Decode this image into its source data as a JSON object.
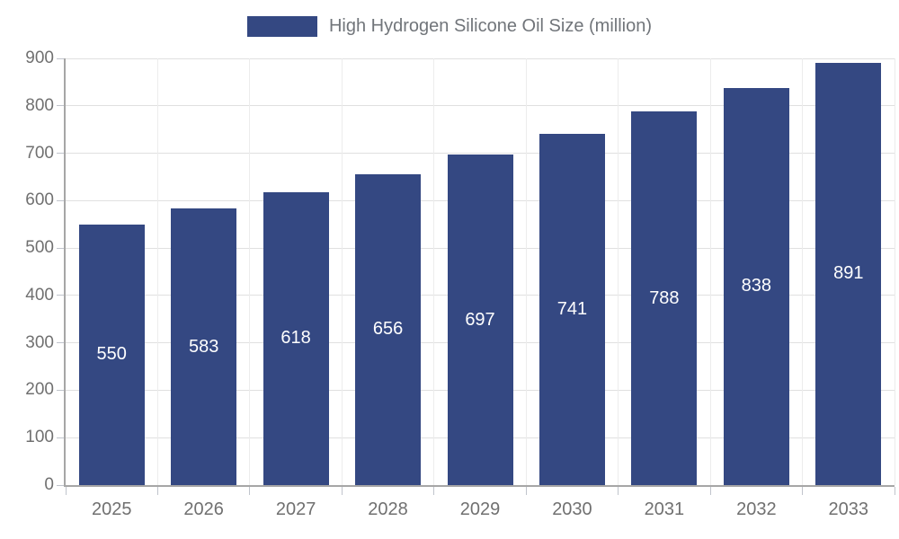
{
  "legend": {
    "label": "High Hydrogen Silicone Oil Size (million)",
    "swatch_color": "#344882"
  },
  "chart_data": {
    "type": "bar",
    "title": "",
    "xlabel": "",
    "ylabel": "",
    "categories": [
      "2025",
      "2026",
      "2027",
      "2028",
      "2029",
      "2030",
      "2031",
      "2032",
      "2033"
    ],
    "series": [
      {
        "name": "High Hydrogen Silicone Oil Size (million)",
        "values": [
          550,
          583,
          618,
          656,
          697,
          741,
          788,
          838,
          891
        ]
      }
    ],
    "value_labels": [
      "550",
      "583",
      "618",
      "656",
      "697",
      "741",
      "788",
      "838",
      "891"
    ],
    "ylim": [
      0,
      900
    ],
    "ytick_step": 100,
    "ytick_labels": [
      "0",
      "100",
      "200",
      "300",
      "400",
      "500",
      "600",
      "700",
      "800",
      "900"
    ],
    "grid": true,
    "legend_position": "top",
    "colors": {
      "bar": "#344882",
      "value_label": "#ffffff",
      "axis_label": "#707070",
      "gridline": "#e0e0e0",
      "axis_line": "#a6a6a6"
    }
  }
}
